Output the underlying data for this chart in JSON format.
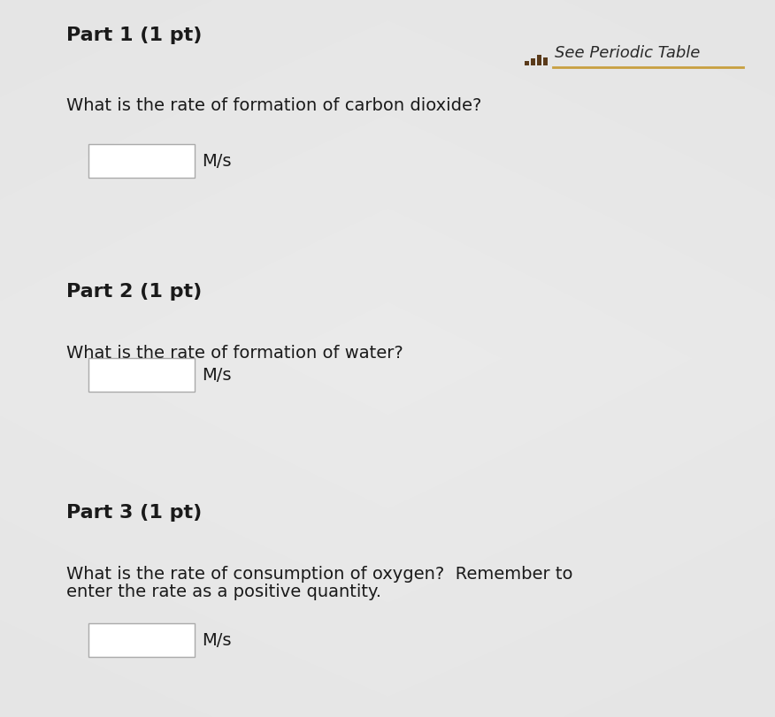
{
  "background_color": "#d8d8d8",
  "text_color": "#1a1a1a",
  "parts": [
    {
      "header": "Part 1 (1 pt)",
      "question": "What is the rate of formation of carbon dioxide?",
      "unit": "M/s",
      "has_periodic_table_link": true
    },
    {
      "header": "Part 2 (1 pt)",
      "question": "What is the rate of formation of water?",
      "unit": "M/s",
      "has_periodic_table_link": false
    },
    {
      "header": "Part 3 (1 pt)",
      "question": "What is the rate of consumption of oxygen?  Remember to\nenter the rate as a positive quantity.",
      "unit": "M/s",
      "has_periodic_table_link": false
    }
  ],
  "periodic_table_text": "See Periodic Table",
  "periodic_table_icon_color": "#5a3a1a",
  "periodic_table_link_color": "#2a2a2a",
  "periodic_table_underline_color": "#c8a040",
  "input_box_facecolor": "#ffffff",
  "input_box_edgecolor": "#aaaaaa",
  "header_fontsize": 16,
  "question_fontsize": 14,
  "unit_fontsize": 14,
  "periodic_table_fontsize": 13
}
